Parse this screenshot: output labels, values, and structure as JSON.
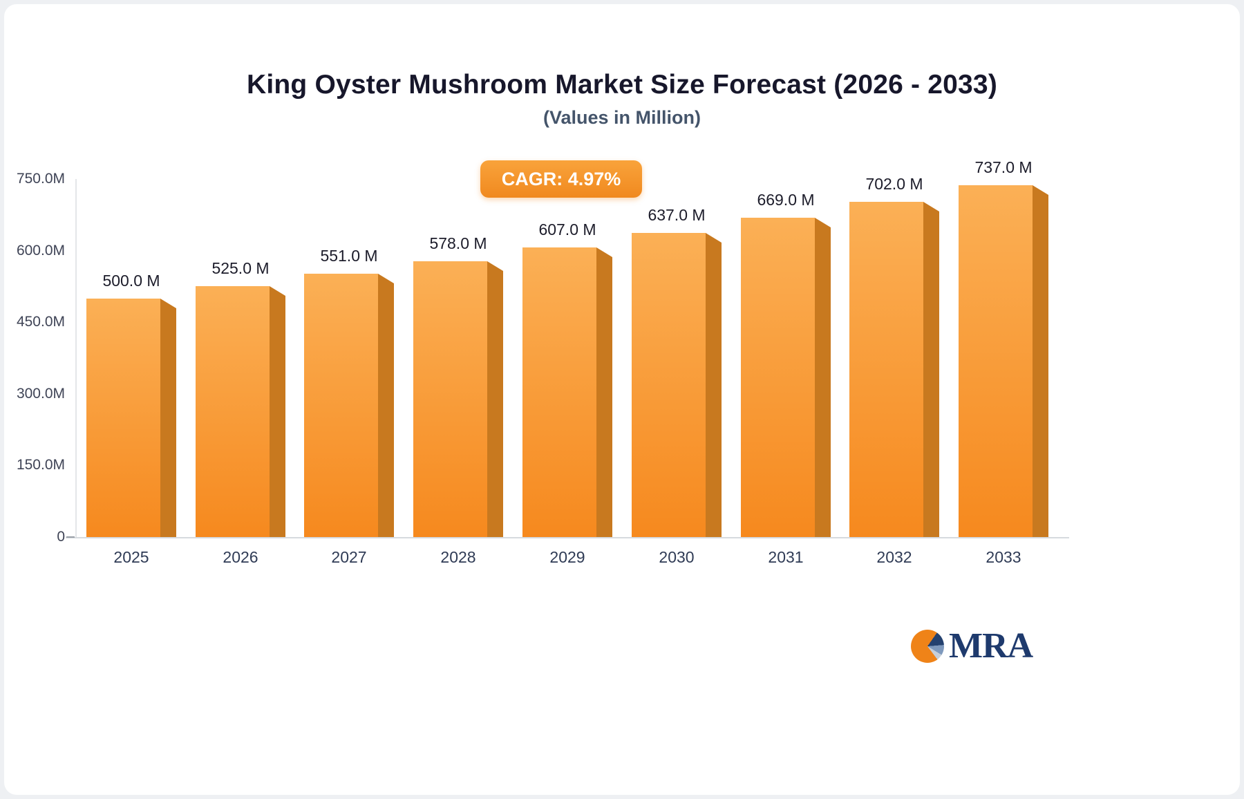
{
  "header": {
    "title": "King Oyster Mushroom Market Size Forecast (2026 - 2033)",
    "subtitle": "(Values in Million)"
  },
  "badge": {
    "label": "CAGR: 4.97%"
  },
  "logo": {
    "text": "MRA"
  },
  "colors": {
    "bar_top": "#fbb056",
    "bar_bottom": "#f6891e",
    "bar_side": "#c8791f",
    "badge_orange": "#f0891f",
    "title_text": "#17172b",
    "subtitle_text": "#44546a"
  },
  "chart_data": {
    "type": "bar",
    "title": "King Oyster Mushroom Market Size Forecast (2026 - 2033)",
    "subtitle": "(Values in Million)",
    "unit": "Million",
    "cagr_label": "CAGR: 4.97%",
    "categories": [
      "2025",
      "2026",
      "2027",
      "2028",
      "2029",
      "2030",
      "2031",
      "2032",
      "2033"
    ],
    "values": [
      500.0,
      525.0,
      551.0,
      578.0,
      607.0,
      637.0,
      669.0,
      702.0,
      737.0
    ],
    "value_labels": [
      "500.0 M",
      "525.0 M",
      "551.0 M",
      "578.0 M",
      "607.0 M",
      "637.0 M",
      "669.0 M",
      "702.0 M",
      "737.0 M"
    ],
    "xlabel": "",
    "ylabel": "",
    "ylim": [
      0,
      750
    ],
    "yticks": [
      0,
      150,
      300,
      450,
      600,
      750
    ],
    "ytick_labels": [
      "0",
      "150.0M",
      "300.0M",
      "450.0M",
      "600.0M",
      "750.0M"
    ],
    "grid": false,
    "legend": false,
    "bar_style": "3d-extruded-right"
  }
}
